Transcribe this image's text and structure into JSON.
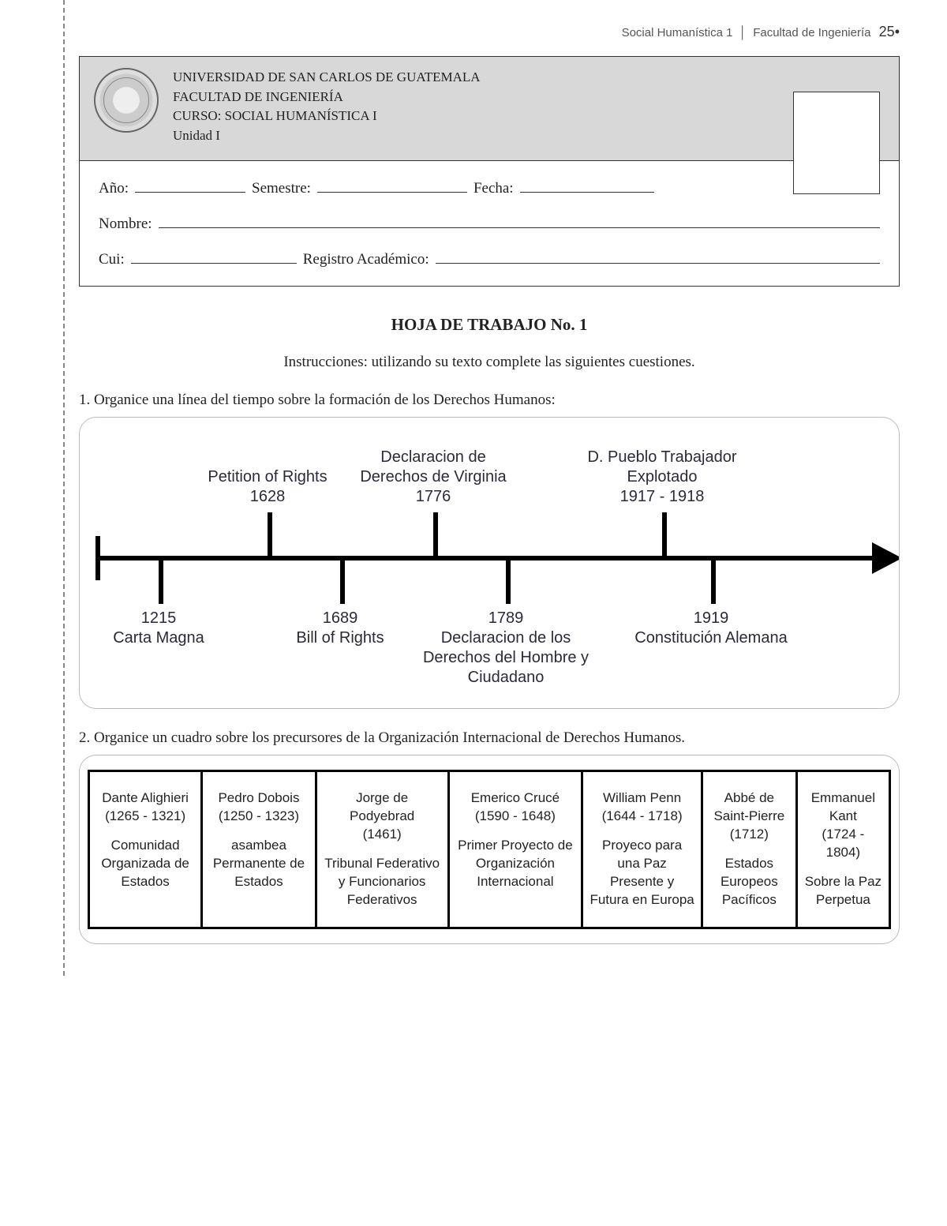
{
  "page_header": {
    "course": "Social Humanística 1",
    "faculty": "Facultad de Ingeniería",
    "page_number": "25"
  },
  "card": {
    "line1": "UNIVERSIDAD DE SAN CARLOS DE GUATEMALA",
    "line2": "FACULTAD DE INGENIERÍA",
    "line3": "CURSO: SOCIAL HUMANÍSTICA I",
    "line4": "Unidad I",
    "labels": {
      "anio": "Año:",
      "semestre": "Semestre:",
      "fecha": "Fecha:",
      "nombre": "Nombre:",
      "cui": "Cui:",
      "registro": "Registro Académico:"
    }
  },
  "worksheet": {
    "title": "HOJA DE TRABAJO No. 1",
    "instructions": "Instrucciones: utilizando su texto complete las siguientes cuestiones.",
    "q1": "1.  Organice una línea del tiempo sobre la formación de los Derechos Humanos:",
    "q2": "2.  Organice un cuadro sobre los precursores de la Organización Internacional de Derechos Humanos."
  },
  "timeline": {
    "axis_color": "#000000",
    "text_color": "#2a2a3a",
    "events_up": [
      {
        "x_pct": 24,
        "tick_x": 238,
        "label": "Petition of Rights",
        "year": "1628"
      },
      {
        "x_pct": 48,
        "tick_x": 448,
        "label": "Declaracion de Derechos de Virginia",
        "year": "1776"
      },
      {
        "x_pct": 76,
        "tick_x": 738,
        "label": "D. Pueblo Trabajador Explotado",
        "year": "1917 - 1918"
      }
    ],
    "events_down": [
      {
        "x_pct": 9,
        "tick_x": 100,
        "year": "1215",
        "label": "Carta Magna"
      },
      {
        "x_pct": 33,
        "tick_x": 330,
        "year": "1689",
        "label": "Bill of Rights"
      },
      {
        "x_pct": 55,
        "tick_x": 540,
        "year": "1789",
        "label": "Declaracion de los Derechos del Hombre y Ciudadano"
      },
      {
        "x_pct": 81,
        "tick_x": 800,
        "year": "1919",
        "label": "Constitución Alemana"
      }
    ]
  },
  "precursors": [
    {
      "name": "Dante Alighieri",
      "years": "(1265 - 1321)",
      "work": "Comunidad Organizada de Estados"
    },
    {
      "name": "Pedro Dobois",
      "years": "(1250 - 1323)",
      "work": "asambea Permanente de Estados"
    },
    {
      "name": "Jorge de Podyebrad",
      "years": "(1461)",
      "work": "Tribunal Federativo y Funcionarios Federativos"
    },
    {
      "name": "Emerico Crucé",
      "years": "(1590 - 1648)",
      "work": "Primer Proyecto de Organización Internacional"
    },
    {
      "name": "William Penn",
      "years": "(1644 - 1718)",
      "work": "Proyeco para una Paz Presente y Futura en Europa"
    },
    {
      "name": "Abbé de Saint-Pierre",
      "years": "(1712)",
      "work": "Estados Europeos Pacíficos"
    },
    {
      "name": "Emmanuel Kant",
      "years": "(1724 - 1804)",
      "work": "Sobre la Paz Perpetua"
    }
  ]
}
